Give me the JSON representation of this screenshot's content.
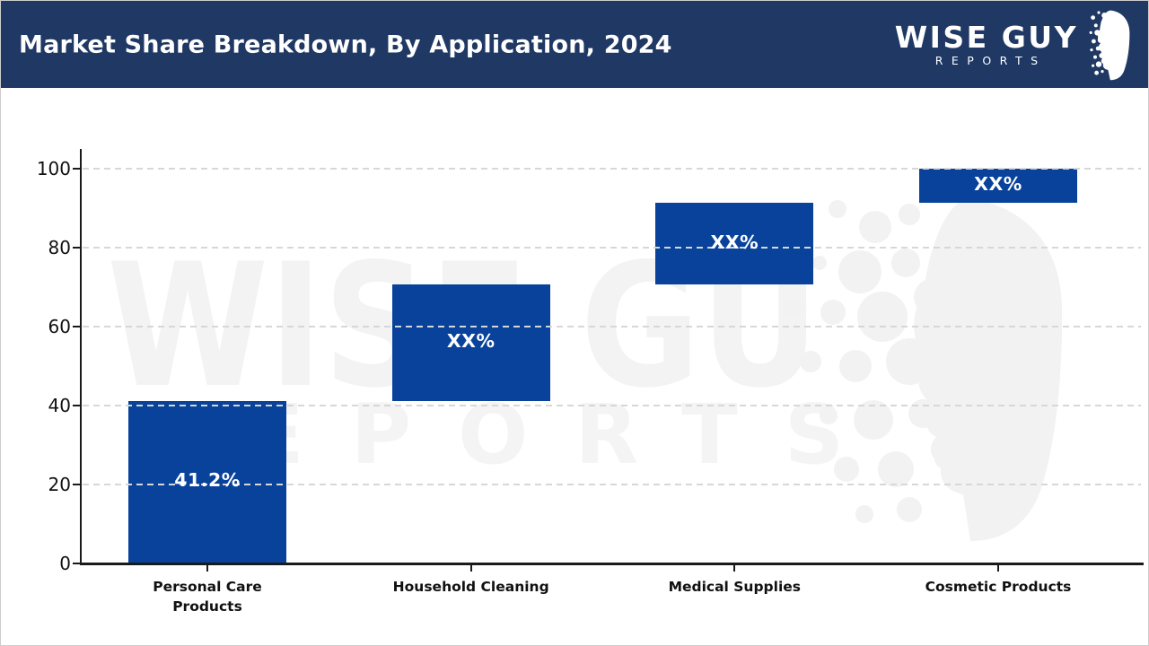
{
  "header": {
    "title": "Market Share Breakdown, By Application, 2024",
    "bg_color": "#1f3864",
    "logo": {
      "line1": "WISE GUY",
      "line2": "REPORTS"
    }
  },
  "watermark": {
    "line1": "WISE GU",
    "line2": "REPORTS"
  },
  "chart_data": {
    "type": "bar",
    "variant": "floating-segments-waterfall",
    "title": "Market Share Breakdown, By Application, 2024",
    "categories": [
      "Personal Care\nProducts",
      "Household Cleaning",
      "Medical Supplies",
      "Cosmetic Products"
    ],
    "bars": [
      {
        "category": "Personal Care Products",
        "start": 0,
        "end": 41.2,
        "label": "41.2%"
      },
      {
        "category": "Household Cleaning",
        "start": 41.2,
        "end": 70.6,
        "label": "XX%"
      },
      {
        "category": "Medical Supplies",
        "start": 70.6,
        "end": 91.3,
        "label": "XX%"
      },
      {
        "category": "Cosmetic Products",
        "start": 91.3,
        "end": 100,
        "label": "XX%"
      }
    ],
    "ylim": [
      0,
      100
    ],
    "yticks": [
      0,
      20,
      40,
      60,
      80,
      100
    ],
    "bar_color": "#08429b",
    "label_color": "#ffffff",
    "grid": "horizontal-dashed",
    "legend": "none"
  }
}
